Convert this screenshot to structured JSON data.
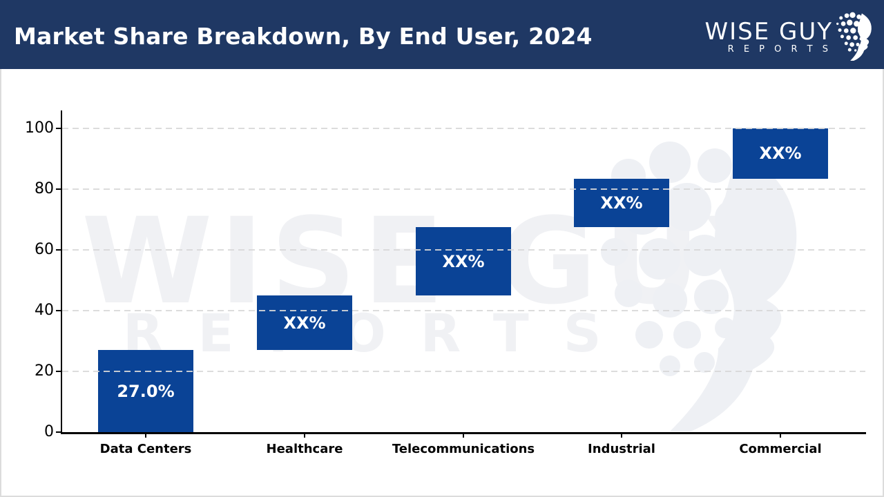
{
  "header": {
    "title": "Market Share Breakdown, By End User, 2024",
    "logo": {
      "line1": "WISE GUY",
      "line2": "R E P O R T S"
    }
  },
  "watermark": {
    "line1": "WISE GUY",
    "line2": "REPORTS"
  },
  "chart_data": {
    "type": "bar",
    "subtype": "waterfall",
    "title": "Market Share Breakdown, By End User, 2024",
    "categories": [
      "Data Centers",
      "Healthcare",
      "Telecommunications",
      "Industrial",
      "Commercial"
    ],
    "segments": [
      {
        "category": "Data Centers",
        "start": 0,
        "end": 27,
        "label": "27.0%"
      },
      {
        "category": "Healthcare",
        "start": 27,
        "end": 45,
        "label": "XX%"
      },
      {
        "category": "Telecommunications",
        "start": 45,
        "end": 67.5,
        "label": "XX%"
      },
      {
        "category": "Industrial",
        "start": 67.5,
        "end": 83.5,
        "label": "XX%"
      },
      {
        "category": "Commercial",
        "start": 83.5,
        "end": 100,
        "label": "XX%"
      }
    ],
    "yticks": [
      0,
      20,
      40,
      60,
      80,
      100
    ],
    "ylim": [
      0,
      105
    ],
    "grid": "dashed-horizontal",
    "legend": "none",
    "bar_color": "#0a4396",
    "bar_label_color": "#ffffff",
    "header_color": "#1f3864",
    "grid_color": "#d8d8d8"
  }
}
